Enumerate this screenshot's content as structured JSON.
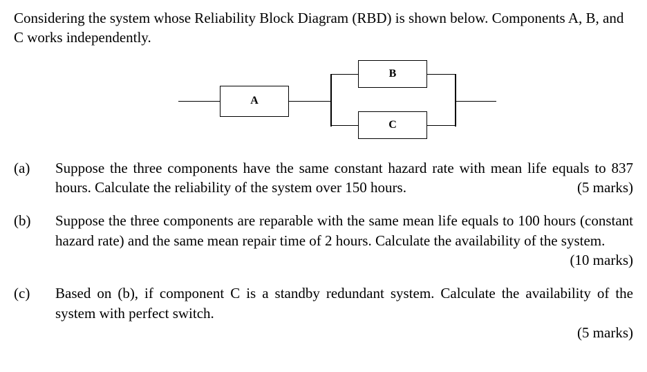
{
  "intro": "Considering the system whose Reliability Block Diagram (RBD) is shown below. Components A, B, and C works independently.",
  "diagram": {
    "blocks": {
      "a": "A",
      "b": "B",
      "c": "C"
    }
  },
  "questions": {
    "a": {
      "label": "(a)",
      "text_part1": "Suppose the three components have the same constant hazard rate with mean life equals to 837 hours. Calculate the reliability of the system over 150 hours.",
      "marks": "(5 marks)"
    },
    "b": {
      "label": "(b)",
      "text": "Suppose the three components are reparable with the same mean life equals to 100 hours (constant hazard rate) and the same mean repair time of 2 hours. Calculate the availability of the system.",
      "marks": "(10 marks)"
    },
    "c": {
      "label": "(c)",
      "text": "Based on (b), if component C is a standby redundant system. Calculate the availability of the system with perfect switch.",
      "marks": "(5 marks)"
    }
  }
}
